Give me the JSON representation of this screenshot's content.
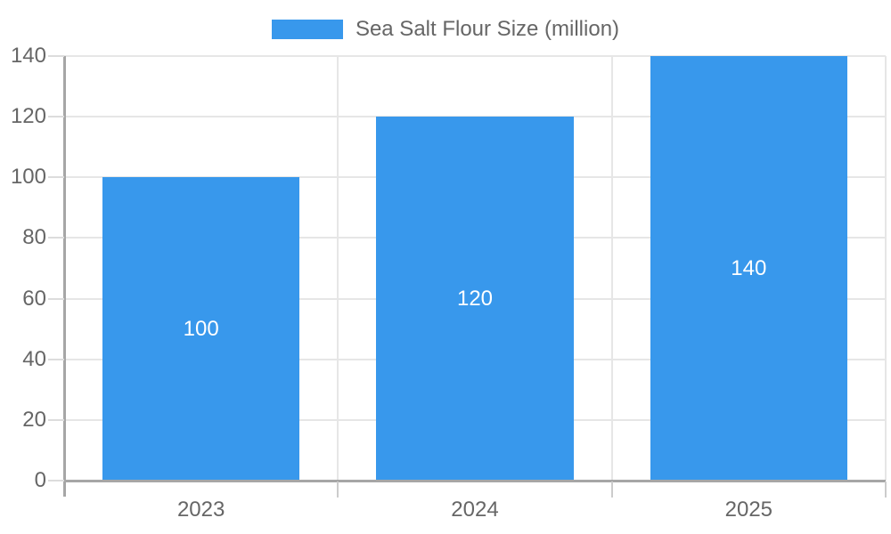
{
  "colors": {
    "bar": "#3898EC",
    "grid": "#e6e6e6",
    "axis": "#a6a6a6",
    "tick": "#cccccc",
    "text": "#666666",
    "data_label": "#ffffff",
    "background": "#ffffff"
  },
  "legend": {
    "label": "Sea Salt Flour Size (million)"
  },
  "chart_data": {
    "type": "bar",
    "title": "Sea Salt Flour Size (million)",
    "categories": [
      "2023",
      "2024",
      "2025"
    ],
    "values": [
      100,
      120,
      140
    ],
    "series": [
      {
        "name": "Sea Salt Flour Size (million)",
        "values": [
          100,
          120,
          140
        ]
      }
    ],
    "data_labels": [
      "100",
      "120",
      "140"
    ],
    "xlabel": "",
    "ylabel": "",
    "ylim": [
      0,
      140
    ],
    "yticks": [
      0,
      20,
      40,
      60,
      80,
      100,
      120,
      140
    ],
    "grid": true,
    "legend_position": "top-center"
  }
}
